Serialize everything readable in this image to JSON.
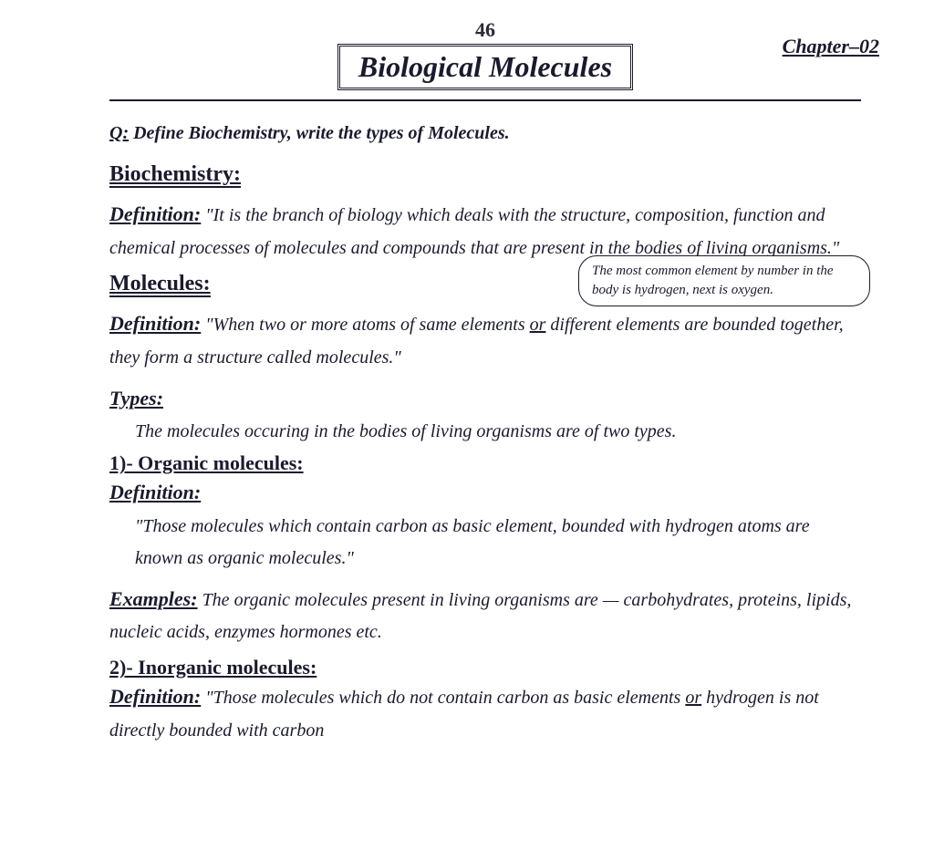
{
  "page_number": "46",
  "chapter": "Chapter–02",
  "title": "Biological Molecules",
  "question": {
    "q_label": "Q:",
    "text": " Define Biochemistry, write the types of Molecules."
  },
  "biochemistry": {
    "heading": "Biochemistry:",
    "def_label": "Definition:",
    "def_text": " \"It is the branch of biology which deals with the structure, composition, function and chemical processes of molecules and compounds that are present in the bodies of living organisms.\""
  },
  "note_box": "The most common element by number in the body is hydrogen, next is oxygen.",
  "molecules": {
    "heading": "Molecules:",
    "def_label": "Definition:",
    "def_text_1": " \"When two or more atoms of same elements ",
    "def_or": "or",
    "def_text_2": " different elements are bounded together, they form a structure called molecules.\"",
    "types_label": "Types:",
    "types_text": "The molecules occuring in the bodies of living organisms are of two types."
  },
  "organic": {
    "number_label": "1)- Organic molecules:",
    "def_label": "Definition:",
    "def_text": " \"Those molecules which contain carbon as basic element, bounded with hydrogen atoms are known as organic molecules.\"",
    "examples_label": "Examples:",
    "examples_text": " The organic molecules present in living organisms are — carbohydrates, proteins, lipids, nucleic acids, enzymes hormones etc."
  },
  "inorganic": {
    "number_label": "2)- Inorganic molecules:",
    "def_label": "Definition:",
    "def_text_1": " \"Those molecules which do not contain carbon as basic elements ",
    "def_or": "or",
    "def_text_2": " hydrogen is not directly bounded with carbon"
  },
  "styles": {
    "text_color": "#1a1a2e",
    "background": "#ffffff",
    "font_family": "cursive"
  }
}
